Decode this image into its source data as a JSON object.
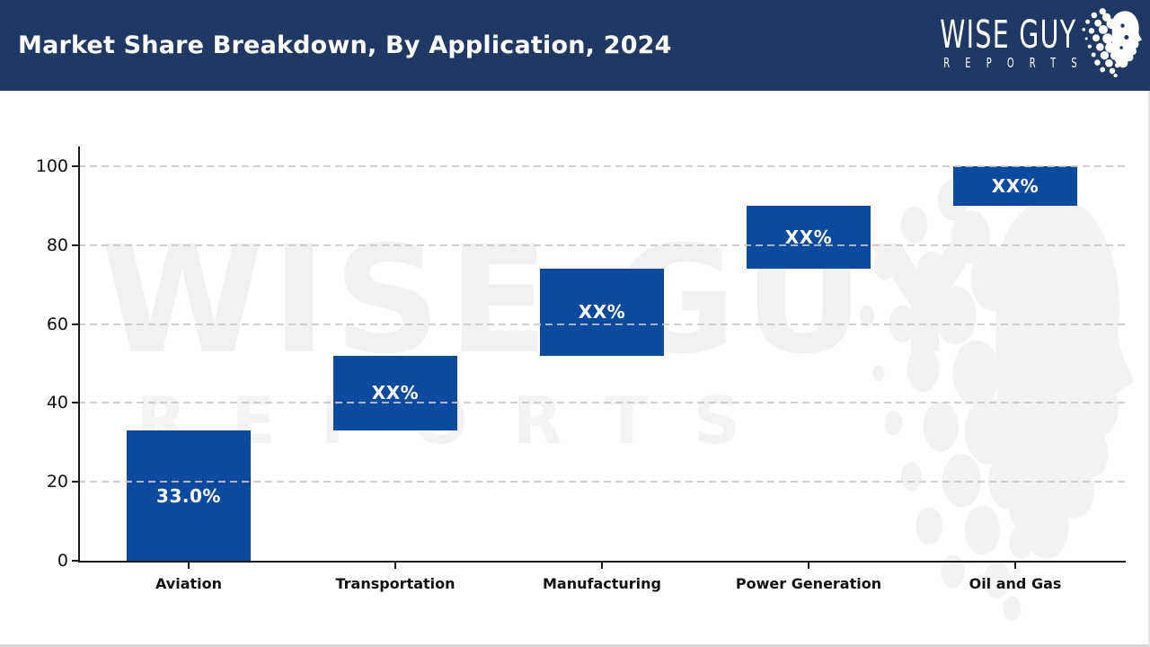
{
  "header": {
    "title": "Market Share Breakdown, By Application, 2024",
    "bg_color": "#213864",
    "logo": {
      "wordmark": "WISE GUY",
      "subtext": "REPORTS"
    }
  },
  "watermark": {
    "wordmark": "WISE GUY",
    "subtext": "REPORTS"
  },
  "chart_data": {
    "type": "bar",
    "subtype": "floating-segment-waterfall",
    "title": "Market Share Breakdown, By Application, 2024",
    "categories": [
      "Aviation",
      "Transportation",
      "Manufacturing",
      "Power Generation",
      "Oil and Gas"
    ],
    "bar_ranges": [
      [
        0,
        33
      ],
      [
        33,
        52
      ],
      [
        52,
        74
      ],
      [
        74,
        90
      ],
      [
        90,
        100
      ]
    ],
    "segment_values": [
      33,
      19,
      22,
      16,
      10
    ],
    "bar_labels": [
      "33.0%",
      "XX%",
      "XX%",
      "XX%",
      "XX%"
    ],
    "unit": "%",
    "ylim": [
      0,
      100
    ],
    "yticks": [
      0,
      20,
      40,
      60,
      80,
      100
    ],
    "grid": {
      "horizontal": true,
      "style": "dashed"
    },
    "legend": "none",
    "colors": {
      "bar": "#0c4a9e",
      "bar_label": "#ffffff",
      "header_bg": "#213864",
      "axis": "#1c1c1c",
      "grid": "#cccccc",
      "watermark": "#f1f1f4"
    }
  }
}
